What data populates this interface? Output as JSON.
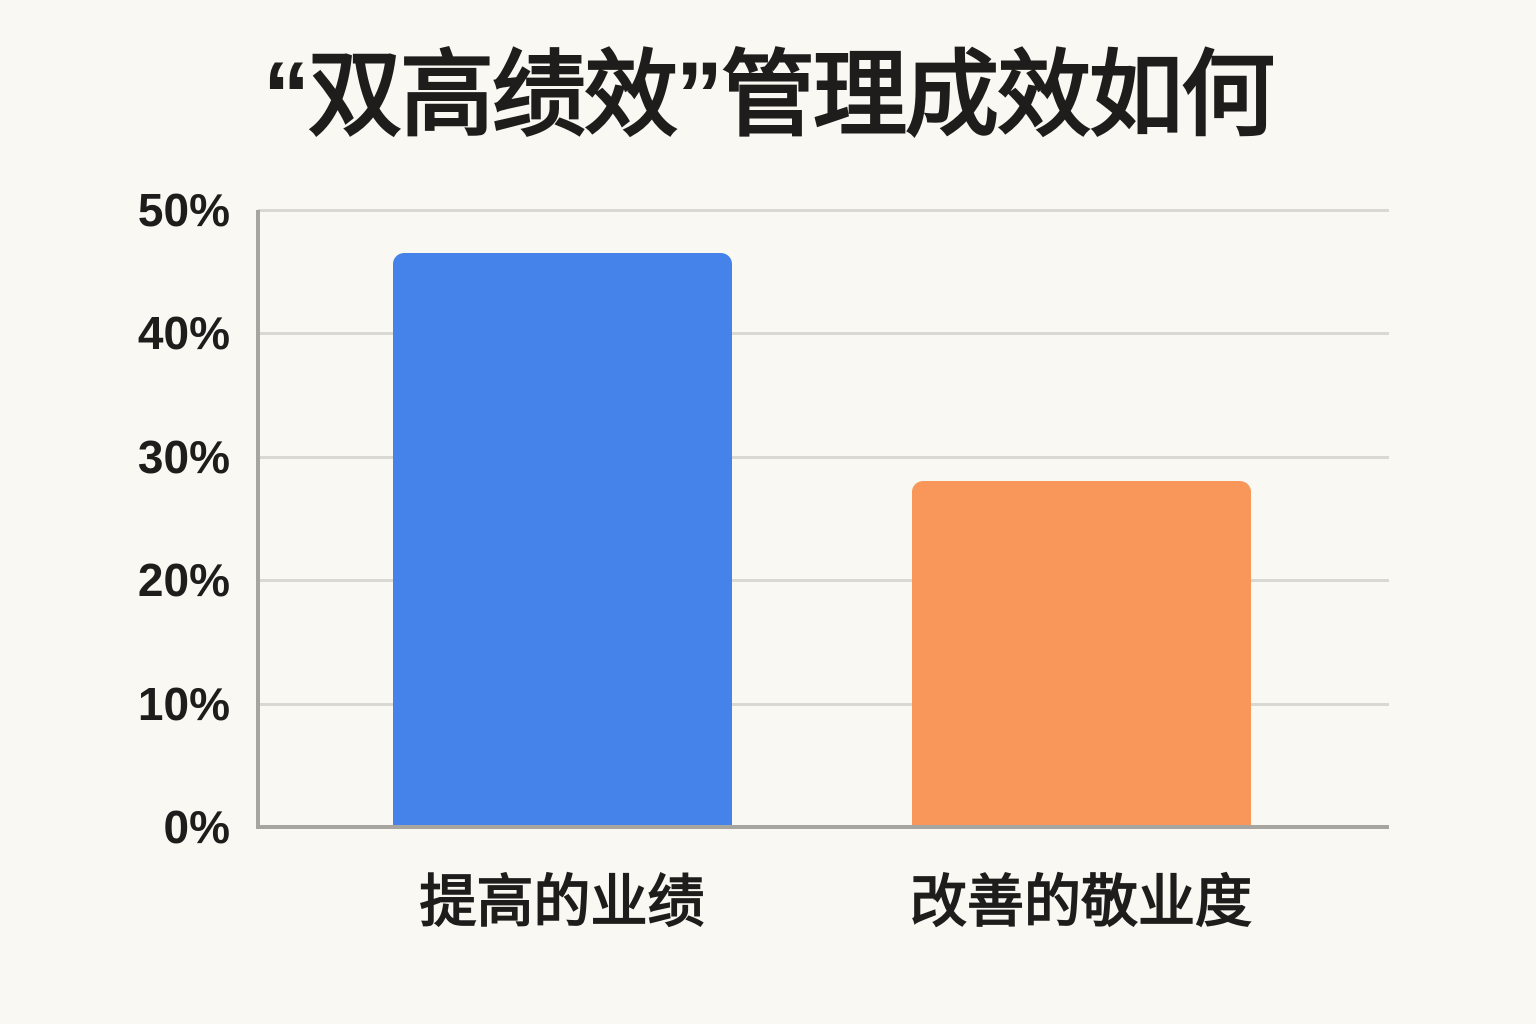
{
  "chart_data": {
    "type": "bar",
    "title": "“双高绩效”管理成效如何",
    "categories": [
      "提高的业绩",
      "改善的敬业度"
    ],
    "values": [
      46.5,
      28
    ],
    "series": [
      {
        "name": "提高的业绩",
        "value": 46.5,
        "color": "#4583eb"
      },
      {
        "name": "改善的敬业度",
        "value": 28,
        "color": "#f9965a"
      }
    ],
    "bar_colors": [
      "#4583eb",
      "#f9965a"
    ],
    "xlabel": "",
    "ylabel": "",
    "ylim": [
      0,
      50
    ],
    "ytick_values": [
      0,
      10,
      20,
      30,
      40,
      50
    ],
    "ytick_labels": [
      "0%",
      "10%",
      "20%",
      "30%",
      "40%",
      "50%"
    ],
    "grid": true,
    "legend": false,
    "colors": {
      "background": "#f9f8f2",
      "text": "#1e1d1b",
      "gridline": "#d9d8d2",
      "axis": "#a6a5a0"
    }
  }
}
